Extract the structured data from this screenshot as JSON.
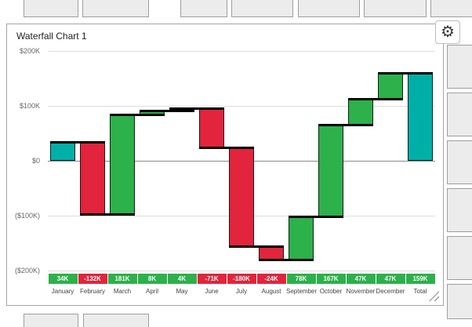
{
  "card": {
    "title": "Waterfall Chart 1"
  },
  "icons": {
    "gear": "⚙"
  },
  "chart_data": {
    "type": "waterfall",
    "title": "Waterfall Chart 1",
    "categories": [
      "January",
      "February",
      "March",
      "April",
      "May",
      "June",
      "July",
      "August",
      "September",
      "October",
      "November",
      "December",
      "Total"
    ],
    "changes": [
      34,
      -132,
      181,
      8,
      4,
      -71,
      -180,
      -24,
      78,
      167,
      47,
      47
    ],
    "total": 159,
    "value_labels": [
      "34K",
      "-132K",
      "181K",
      "8K",
      "4K",
      "-71K",
      "-180K",
      "-24K",
      "78K",
      "167K",
      "47K",
      "47K",
      "159K"
    ],
    "y_ticks": [
      {
        "value": 200,
        "label": "$200K"
      },
      {
        "value": 100,
        "label": "$100K"
      },
      {
        "value": 0,
        "label": "$0"
      },
      {
        "value": -100,
        "label": "($100K)"
      },
      {
        "value": -200,
        "label": "($200K)"
      }
    ],
    "ylim": [
      -200,
      200
    ],
    "grid": true,
    "legend": "none",
    "colors": {
      "positive": "#2CB14B",
      "negative": "#E2243C",
      "total": "#00B0A8",
      "connector": "#000000"
    }
  }
}
